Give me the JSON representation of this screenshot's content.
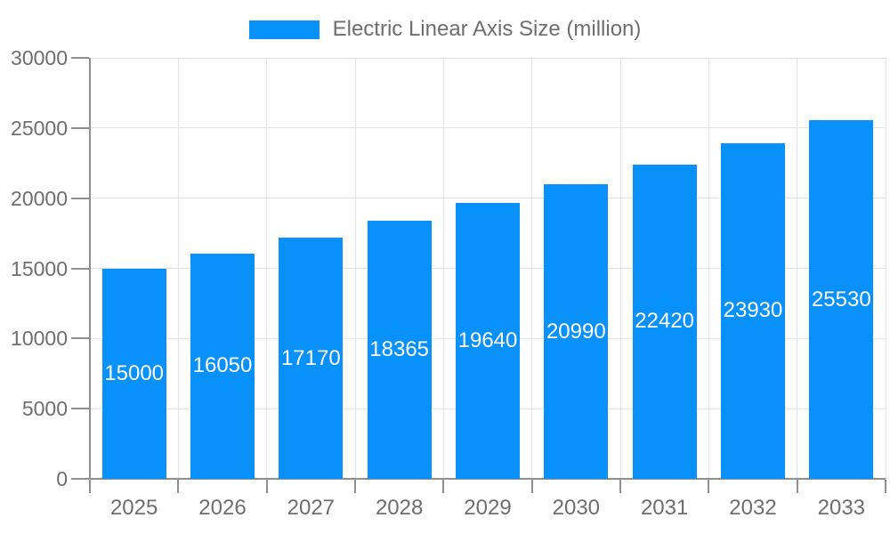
{
  "legend": {
    "label": "Electric Linear Axis Size (million)"
  },
  "colors": {
    "bar": "#0890fb",
    "axis_line": "#8f8f8f",
    "tick_line": "#8f8f8f",
    "grid_line": "#e3e3e3",
    "axis_text": "#6e6e6e",
    "legend_text": "#6e6e6e",
    "bar_label_text": "#ffffff",
    "background": "#ffffff"
  },
  "chart_data": {
    "type": "bar",
    "title": "Electric Linear Axis Size (million)",
    "categories": [
      "2025",
      "2026",
      "2027",
      "2028",
      "2029",
      "2030",
      "2031",
      "2032",
      "2033"
    ],
    "series": [
      {
        "name": "Electric Linear Axis Size (million)",
        "values": [
          15000,
          16050,
          17170,
          18365,
          19640,
          20990,
          22420,
          23930,
          25530
        ],
        "color": "#0890fb"
      }
    ],
    "value_labels": [
      "15000",
      "16050",
      "17170",
      "18365",
      "19640",
      "20990",
      "22420",
      "23930",
      "25530"
    ],
    "value_label_position": "inside-center",
    "xlabel": "",
    "ylabel": "",
    "ylim": [
      0,
      30000
    ],
    "yticks": [
      0,
      5000,
      10000,
      15000,
      20000,
      25000,
      30000
    ],
    "ytick_labels": [
      "0",
      "5000",
      "10000",
      "15000",
      "20000",
      "25000",
      "30000"
    ],
    "grid": true,
    "legend_position": "top-center"
  }
}
